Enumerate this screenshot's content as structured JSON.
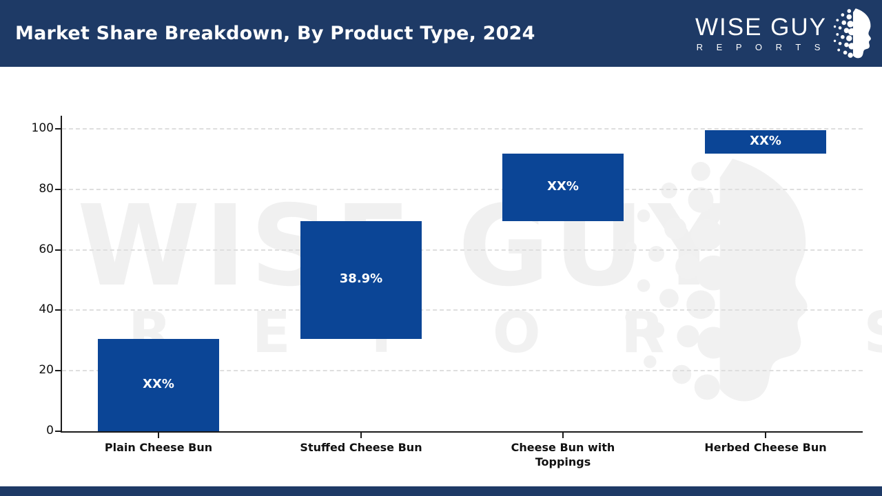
{
  "header": {
    "title": "Market Share Breakdown, By Product Type, 2024",
    "logo": {
      "line1": "WISE GUY",
      "line2": "R E P O R T S"
    },
    "bg_color": "#1e3a66",
    "text_color": "#ffffff"
  },
  "watermark": {
    "line1": "WISE GUY",
    "line2": "R E P O R T S"
  },
  "chart_data": {
    "type": "bar",
    "subtype": "floating-waterfall-segments",
    "title": "Market Share Breakdown, By Product Type, 2024",
    "categories": [
      "Plain Cheese Bun",
      "Stuffed Cheese Bun",
      "Cheese Bun with\nToppings",
      "Herbed Cheese Bun"
    ],
    "segments": [
      {
        "category": "Plain Cheese Bun",
        "start": 0,
        "end": 30.6,
        "label": "XX%"
      },
      {
        "category": "Stuffed Cheese Bun",
        "start": 30.6,
        "end": 69.5,
        "label": "38.9%"
      },
      {
        "category": "Cheese Bun with Toppings",
        "start": 69.5,
        "end": 91.9,
        "label": "XX%"
      },
      {
        "category": "Herbed Cheese Bun",
        "start": 91.9,
        "end": 99.6,
        "label": "XX%"
      }
    ],
    "yticks": [
      0,
      20,
      40,
      60,
      80,
      100
    ],
    "ylim": [
      0,
      104.5
    ],
    "xlabel": "",
    "ylabel": "",
    "grid": "horizontal-dashed",
    "legend": "none",
    "bar_color": "#0b4596",
    "bar_label_color": "#ffffff"
  },
  "footer": {
    "bg_color": "#1e3a66"
  }
}
